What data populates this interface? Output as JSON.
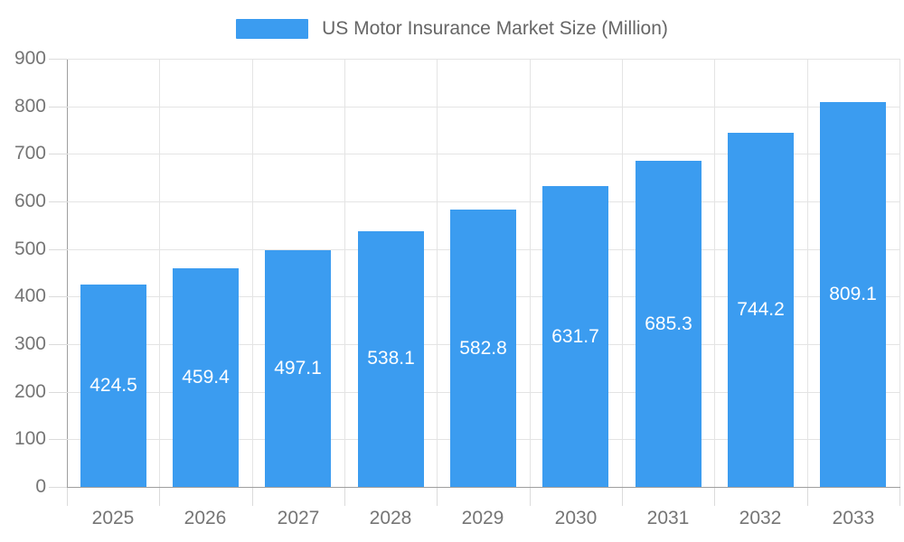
{
  "legend": {
    "label": "US Motor Insurance Market Size (Million)"
  },
  "chart_data": {
    "type": "bar",
    "title": "US Motor Insurance Market Size (Million)",
    "categories": [
      "2025",
      "2026",
      "2027",
      "2028",
      "2029",
      "2030",
      "2031",
      "2032",
      "2033"
    ],
    "values": [
      424.5,
      459.4,
      497.1,
      538.1,
      582.8,
      631.7,
      685.3,
      744.2,
      809.1
    ],
    "value_labels": [
      "424.5",
      "459.4",
      "497.1",
      "538.1",
      "582.8",
      "631.7",
      "685.3",
      "744.2",
      "809.1"
    ],
    "xlabel": "",
    "ylabel": "",
    "ylim": [
      0,
      900
    ],
    "ytick_step": 100,
    "ytick_labels": [
      "0",
      "100",
      "200",
      "300",
      "400",
      "500",
      "600",
      "700",
      "800",
      "900"
    ],
    "grid": true,
    "legend_position": "top-center",
    "colors": {
      "bar": "#3B9CF0",
      "value_label": "#FFFFFF",
      "axis_line": "#9E9E9E",
      "grid_line": "#E4E4E4",
      "tick_line": "#DBDBDB",
      "axis_text": "#757575",
      "legend_text": "#666666",
      "background": "#FFFFFF"
    }
  }
}
